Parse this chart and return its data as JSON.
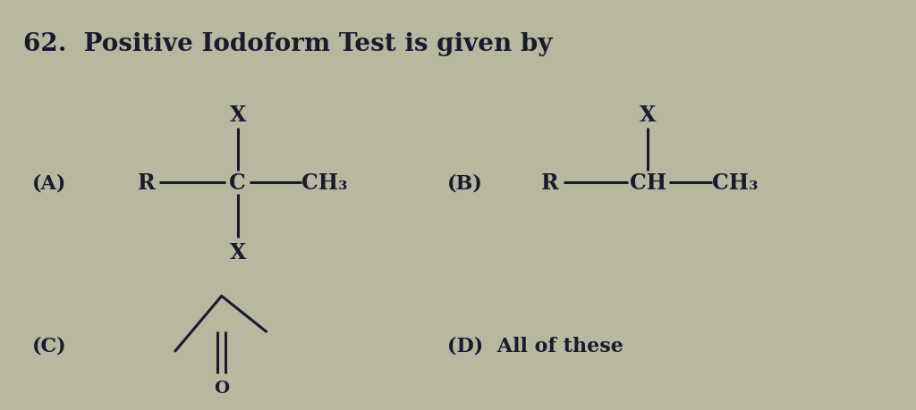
{
  "title": "62.  Positive Iodoform Test is given by",
  "title_fontsize": 20,
  "bg_color": "#b8b8a0",
  "text_color": "#1a1a2e",
  "lw": 2.2,
  "fs_main": 17,
  "fs_label": 16,
  "fs_sub": 14,
  "A_label": "(A)",
  "B_label": "(B)",
  "C_label": "(C)",
  "D_label": "(D)  All of these",
  "R": "R",
  "C_atom": "C",
  "CH_atom": "CH",
  "CH3": "CH₃",
  "X": "X",
  "figw": 10.24,
  "figh": 4.6,
  "dpi": 100
}
